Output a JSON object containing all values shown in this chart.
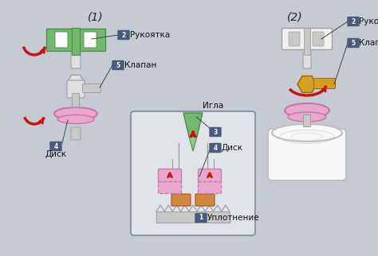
{
  "bg_color": "#c5cad3",
  "label_bg": "#4a5a7a",
  "label_fg": "#ffffff",
  "green_handle": "#72b86e",
  "green_dark": "#4e8c4a",
  "pink_disc": "#e8a8cc",
  "pink_dark": "#c878a8",
  "gold_valve": "#d4a020",
  "gold_dark": "#a07010",
  "gray_light": "#e0e0e0",
  "gray_mid": "#c8c8c8",
  "gray_dark": "#a0a0a0",
  "white_handle": "#f0f0f0",
  "red_arrow": "#cc1111",
  "orange_seal": "#d08840",
  "inset_bg": "#e0e4e8",
  "inset_border": "#8898aa",
  "title1": "(1)",
  "title2": "(2)",
  "lbl_rukoytka": "Рукоятка",
  "lbl_klapan": "Клапан",
  "lbl_disk": "Диск",
  "lbl_igla": "Игла",
  "lbl_uplot": "Уплотнение"
}
